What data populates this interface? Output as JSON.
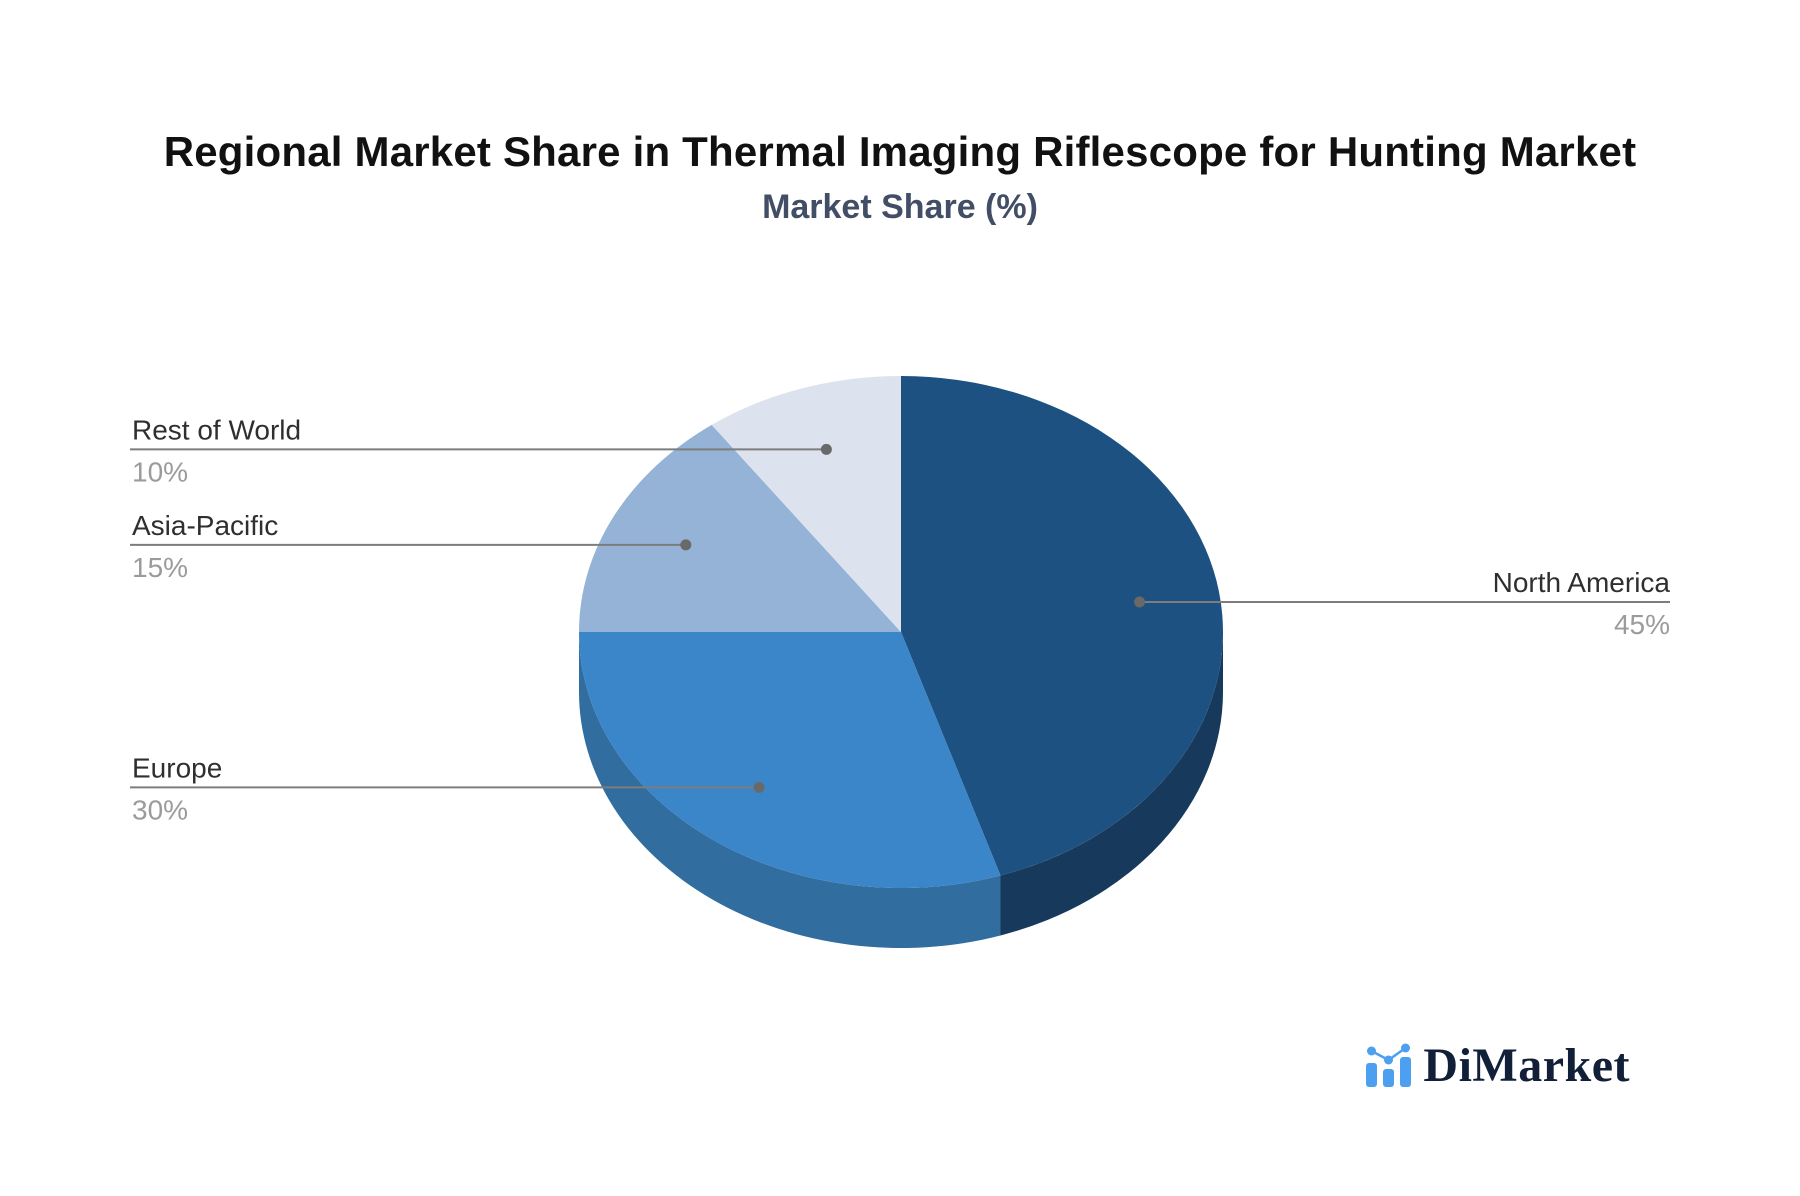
{
  "title": "Regional Market Share in Thermal Imaging Riflescope for Hunting Market",
  "subtitle": "Market Share (%)",
  "brand": {
    "name": "DiMarket",
    "icon": "bar-chart-logo-icon",
    "icon_color": "#4d9ff0",
    "text_color": "#111f38"
  },
  "chart_data": {
    "type": "pie",
    "style": "3d",
    "title": "Regional Market Share in Thermal Imaging Riflescope for Hunting Market",
    "subtitle": "Market Share (%)",
    "unit": "%",
    "start_angle_deg": 0,
    "direction": "clockwise",
    "slices": [
      {
        "label": "North America",
        "value": 45,
        "color": "#1d5181",
        "side_color": "#16395c"
      },
      {
        "label": "Europe",
        "value": 30,
        "color": "#3b86c8",
        "side_color": "#326d9f"
      },
      {
        "label": "Asia-Pacific",
        "value": 15,
        "color": "#94b3d7",
        "side_color": "#7795b3"
      },
      {
        "label": "Rest of World",
        "value": 10,
        "color": "#dde3ee",
        "side_color": "#b9c2d1"
      }
    ],
    "callout": {
      "line_color": "#7d7d7d",
      "dot_color": "#696969",
      "label_color": "#2f2f2f",
      "value_color": "#9b9b9b"
    },
    "legend_position": "callout-labels",
    "grid": false
  }
}
